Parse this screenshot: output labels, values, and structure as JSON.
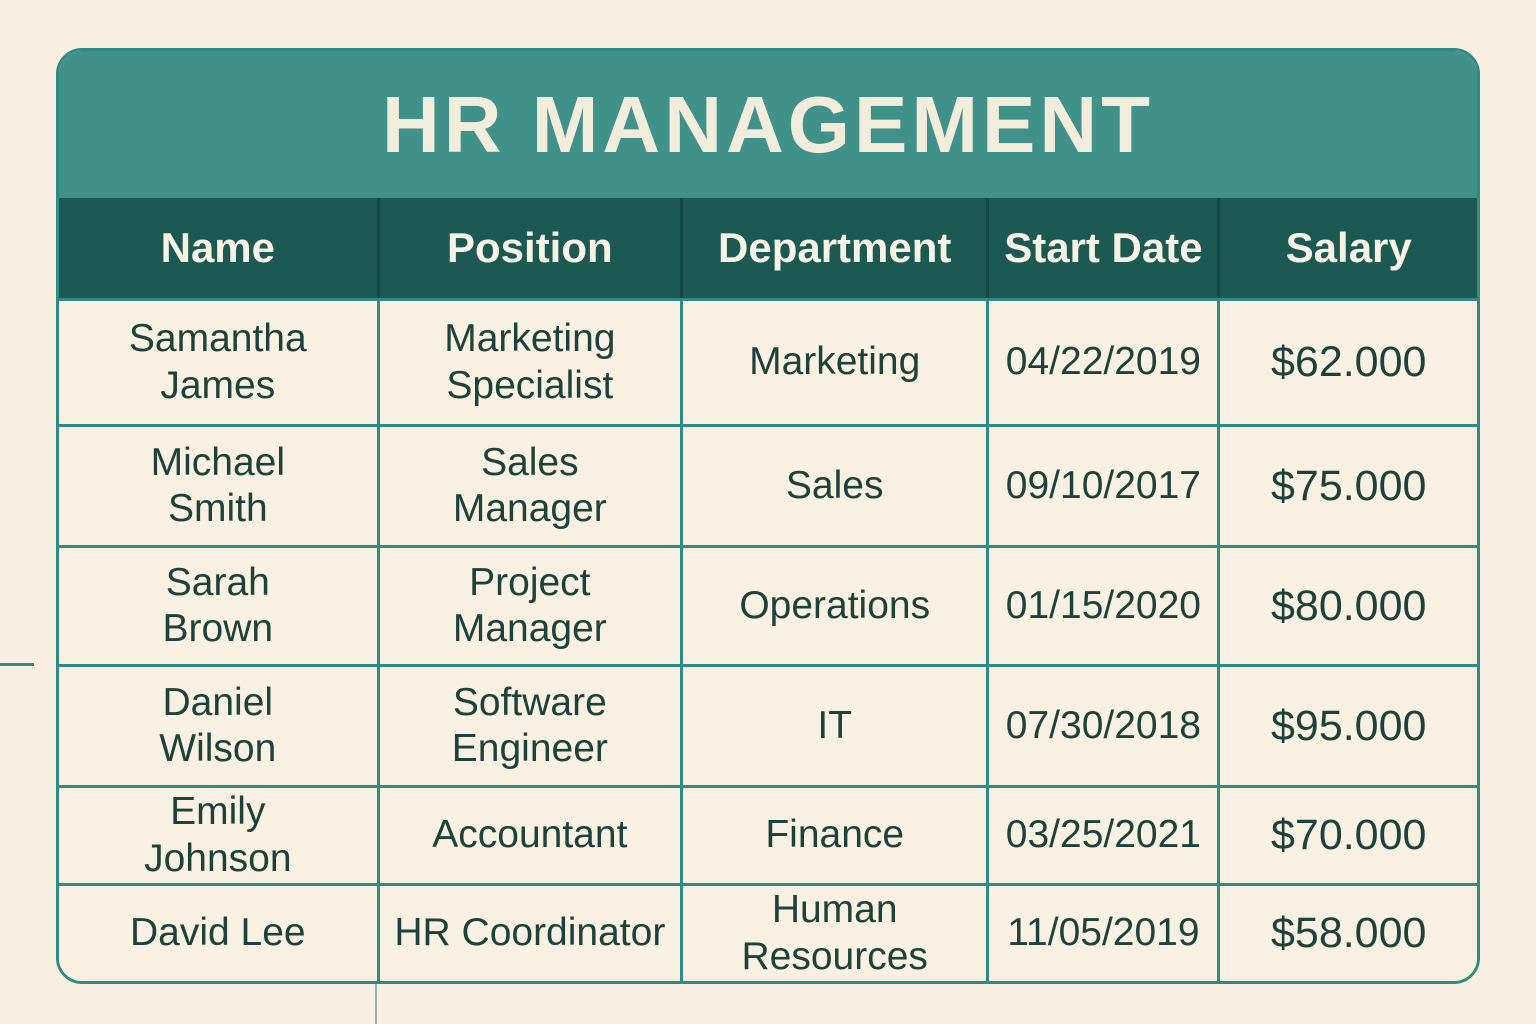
{
  "title": "HR MANAGEMENT",
  "table": {
    "columns": [
      "Name",
      "Position",
      "Department",
      "Start Date",
      "Salary"
    ],
    "rows": [
      {
        "name": "Samantha\nJames",
        "position": "Marketing\nSpecialist",
        "department": "Marketing",
        "start_date": "04/22/2019",
        "salary": "$62.000"
      },
      {
        "name": "Michael\nSmith",
        "position": "Sales\nManager",
        "department": "Sales",
        "start_date": "09/10/2017",
        "salary": "$75.000"
      },
      {
        "name": "Sarah\nBrown",
        "position": "Project\nManager",
        "department": "Operations",
        "start_date": "01/15/2020",
        "salary": "$80.000"
      },
      {
        "name": "Daniel\nWilson",
        "position": "Software\nEngineer",
        "department": "IT",
        "start_date": "07/30/2018",
        "salary": "$95.000"
      },
      {
        "name": "Emily\nJohnson",
        "position": "Accountant",
        "department": "Finance",
        "start_date": "03/25/2021",
        "salary": "$70.000"
      },
      {
        "name": "David Lee",
        "position": "HR Coordinator",
        "department": "Human\nResources",
        "start_date": "11/05/2019",
        "salary": "$58.000"
      }
    ]
  },
  "colors": {
    "page_background": "#f8efe0",
    "title_band": "#3f918a",
    "title_text": "#f2ecdb",
    "header_background": "#1d5953",
    "header_divider": "#164741",
    "header_text": "#f6f2e4",
    "cell_background": "#f8f0e1",
    "cell_border": "#2f8b85",
    "body_text": "#1d423e"
  },
  "chart_data": {
    "type": "table",
    "title": "HR MANAGEMENT",
    "columns": [
      "Name",
      "Position",
      "Department",
      "Start Date",
      "Salary"
    ],
    "rows": [
      [
        "Samantha James",
        "Marketing Specialist",
        "Marketing",
        "04/22/2019",
        "$62.000"
      ],
      [
        "Michael Smith",
        "Sales Manager",
        "Sales",
        "09/10/2017",
        "$75.000"
      ],
      [
        "Sarah Brown",
        "Project Manager",
        "Operations",
        "01/15/2020",
        "$80.000"
      ],
      [
        "Daniel Wilson",
        "Software Engineer",
        "IT",
        "07/30/2018",
        "$95.000"
      ],
      [
        "Emily Johnson",
        "Accountant",
        "Finance",
        "03/25/2021",
        "$70.000"
      ],
      [
        "David Lee",
        "HR Coordinator",
        "Human Resources",
        "11/05/2019",
        "$58.000"
      ]
    ]
  }
}
